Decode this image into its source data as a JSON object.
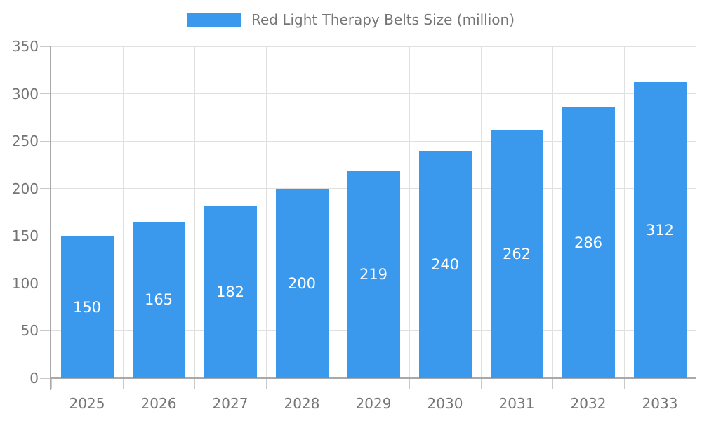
{
  "legend": {
    "series_label": "Red Light Therapy Belts Size (million)"
  },
  "chart_data": {
    "type": "bar",
    "title": "Red Light Therapy Belts Size (million)",
    "categories": [
      "2025",
      "2026",
      "2027",
      "2028",
      "2029",
      "2030",
      "2031",
      "2032",
      "2033"
    ],
    "values": [
      150,
      165,
      182,
      200,
      219,
      240,
      262,
      286,
      312
    ],
    "xlabel": "",
    "ylabel": "",
    "ylim": [
      0,
      350
    ],
    "yticks": [
      0,
      50,
      100,
      150,
      200,
      250,
      300,
      350
    ],
    "grid": true,
    "legend_position": "top-center",
    "bar_labels_inside": true
  },
  "colors": {
    "bar": "#3a99ed",
    "bar_label": "#ffffff",
    "text": "#757575",
    "grid_line": "#e0e0e0",
    "tick_line": "#c9c9c9",
    "axis_line": "#a9a9a9",
    "background": "#ffffff"
  }
}
